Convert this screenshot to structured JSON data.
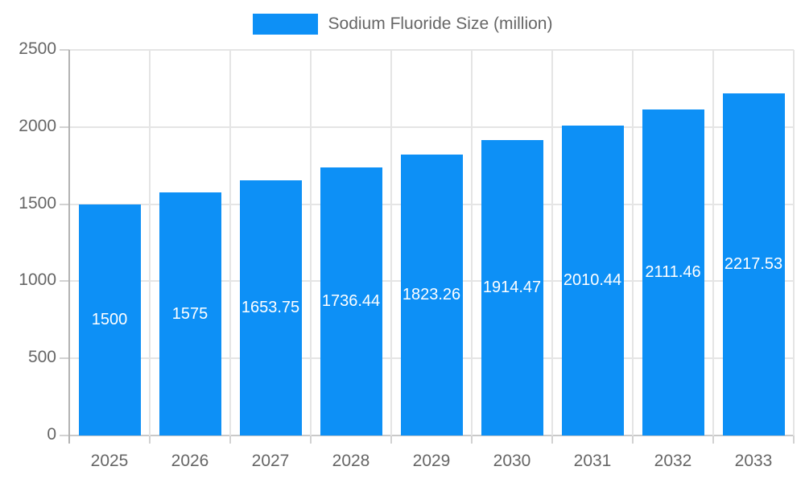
{
  "legend": {
    "label": "Sodium Fluoride Size (million)"
  },
  "colors": {
    "bar": "#0d90f6",
    "axis_text": "#666666",
    "grid": "#e5e5e5",
    "baseline": "#c9c9c9",
    "tick": "#d2d2d2",
    "axis_border": "#b3b3b3",
    "value_label": "#ffffff",
    "background": "#ffffff"
  },
  "chart_data": {
    "type": "bar",
    "title": "Sodium Fluoride Size (million)",
    "categories": [
      "2025",
      "2026",
      "2027",
      "2028",
      "2029",
      "2030",
      "2031",
      "2032",
      "2033"
    ],
    "values": [
      1500,
      1575,
      1653.75,
      1736.44,
      1823.26,
      1914.47,
      2010.44,
      2111.46,
      2217.53
    ],
    "value_labels": [
      "1500",
      "1575",
      "1653.75",
      "1736.44",
      "1823.26",
      "1914.47",
      "2010.44",
      "2111.46",
      "2217.53"
    ],
    "xlabel": "",
    "ylabel": "",
    "ylim": [
      0,
      2500
    ],
    "yticks": [
      0,
      500,
      1000,
      1500,
      2000,
      2500
    ],
    "grid": true,
    "legend_position": "top",
    "series_name": "Sodium Fluoride Size (million)"
  }
}
